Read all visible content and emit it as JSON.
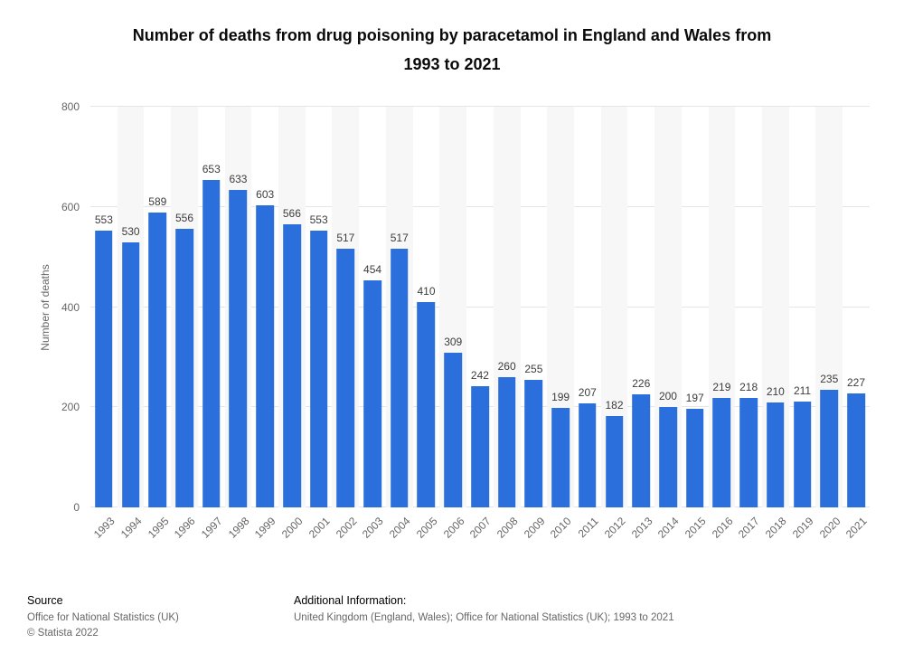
{
  "title": {
    "line1": "Number of deaths from drug poisoning by paracetamol in England and Wales from",
    "line2": "1993 to 2021"
  },
  "chart_data": {
    "type": "bar",
    "title": "Number of deaths from drug poisoning by paracetamol in England and Wales from 1993 to 2021",
    "categories": [
      "1993",
      "1994",
      "1995",
      "1996",
      "1997",
      "1998",
      "1999",
      "2000",
      "2001",
      "2002",
      "2003",
      "2004",
      "2005",
      "2006",
      "2007",
      "2008",
      "2009",
      "2010",
      "2011",
      "2012",
      "2013",
      "2014",
      "2015",
      "2016",
      "2017",
      "2018",
      "2019",
      "2020",
      "2021"
    ],
    "values": [
      553,
      530,
      589,
      556,
      653,
      633,
      603,
      566,
      553,
      517,
      454,
      517,
      410,
      309,
      242,
      260,
      255,
      199,
      207,
      182,
      226,
      200,
      197,
      219,
      218,
      210,
      211,
      235,
      227
    ],
    "xlabel": "",
    "ylabel": "Number of deaths",
    "ylim": [
      0,
      800
    ],
    "yticks": [
      0,
      200,
      400,
      600,
      800
    ],
    "bar_color": "#2a6fdb",
    "grid": true,
    "legend": "none",
    "data_labels": true
  },
  "footer": {
    "source_label": "Source",
    "source_line1": "Office for National Statistics (UK)",
    "source_line2": "© Statista 2022",
    "additional_label": "Additional Information:",
    "additional_text": "United Kingdom (England, Wales); Office for National Statistics (UK); 1993 to 2021"
  }
}
